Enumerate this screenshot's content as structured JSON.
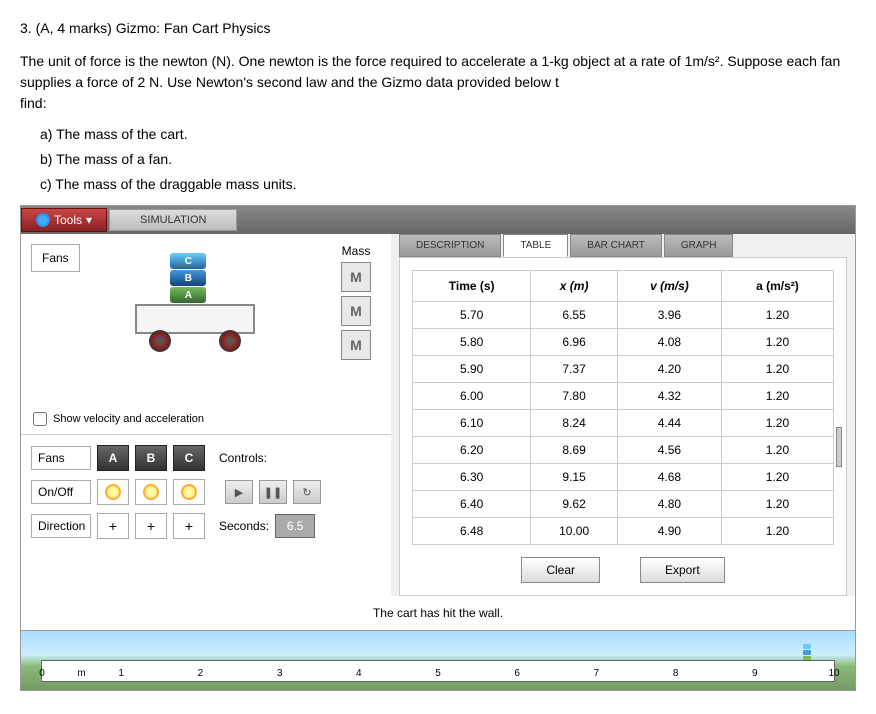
{
  "question": {
    "number": "3.",
    "marks": "(A, 4 marks)",
    "title": "Gizmo: Fan Cart Physics",
    "body": "The unit of force is the newton (N). One newton is the force required to accelerate a 1-kg object at a rate of 1m/s². Suppose each fan supplies a force of 2 N. Use Newton's second law and the Gizmo data provided below t",
    "find": "find:",
    "items": {
      "a": "a)   The mass of the cart.",
      "b": "b)   The mass of a fan.",
      "c": "c)   The mass of the draggable mass units."
    }
  },
  "toolbar": {
    "tools": "Tools",
    "simulation": "SIMULATION"
  },
  "sim": {
    "fans_label": "Fans",
    "mass_label": "Mass",
    "mass_letter": "M",
    "fan_letters": {
      "a": "A",
      "b": "B",
      "c": "C"
    },
    "show_velocity": "Show velocity and acceleration"
  },
  "controls": {
    "fans": "Fans",
    "onoff": "On/Off",
    "direction": "Direction",
    "controls_label": "Controls:",
    "seconds_label": "Seconds:",
    "seconds_value": "6.5",
    "plus": "+"
  },
  "tabs": {
    "description": "DESCRIPTION",
    "table": "TABLE",
    "barchart": "BAR CHART",
    "graph": "GRAPH"
  },
  "table": {
    "headers": {
      "time": "Time (s)",
      "x": "x (m)",
      "v": "v (m/s)",
      "a": "a (m/s²)"
    },
    "rows": [
      {
        "t": "5.70",
        "x": "6.55",
        "v": "3.96",
        "a": "1.20"
      },
      {
        "t": "5.80",
        "x": "6.96",
        "v": "4.08",
        "a": "1.20"
      },
      {
        "t": "5.90",
        "x": "7.37",
        "v": "4.20",
        "a": "1.20"
      },
      {
        "t": "6.00",
        "x": "7.80",
        "v": "4.32",
        "a": "1.20"
      },
      {
        "t": "6.10",
        "x": "8.24",
        "v": "4.44",
        "a": "1.20"
      },
      {
        "t": "6.20",
        "x": "8.69",
        "v": "4.56",
        "a": "1.20"
      },
      {
        "t": "6.30",
        "x": "9.15",
        "v": "4.68",
        "a": "1.20"
      },
      {
        "t": "6.40",
        "x": "9.62",
        "v": "4.80",
        "a": "1.20"
      },
      {
        "t": "6.48",
        "x": "10.00",
        "v": "4.90",
        "a": "1.20"
      }
    ],
    "clear": "Clear",
    "export": "Export"
  },
  "status": "The cart has hit the wall.",
  "ruler": {
    "m_label": "m",
    "marks": [
      "0",
      "1",
      "2",
      "3",
      "4",
      "5",
      "6",
      "7",
      "8",
      "9",
      "10"
    ]
  }
}
